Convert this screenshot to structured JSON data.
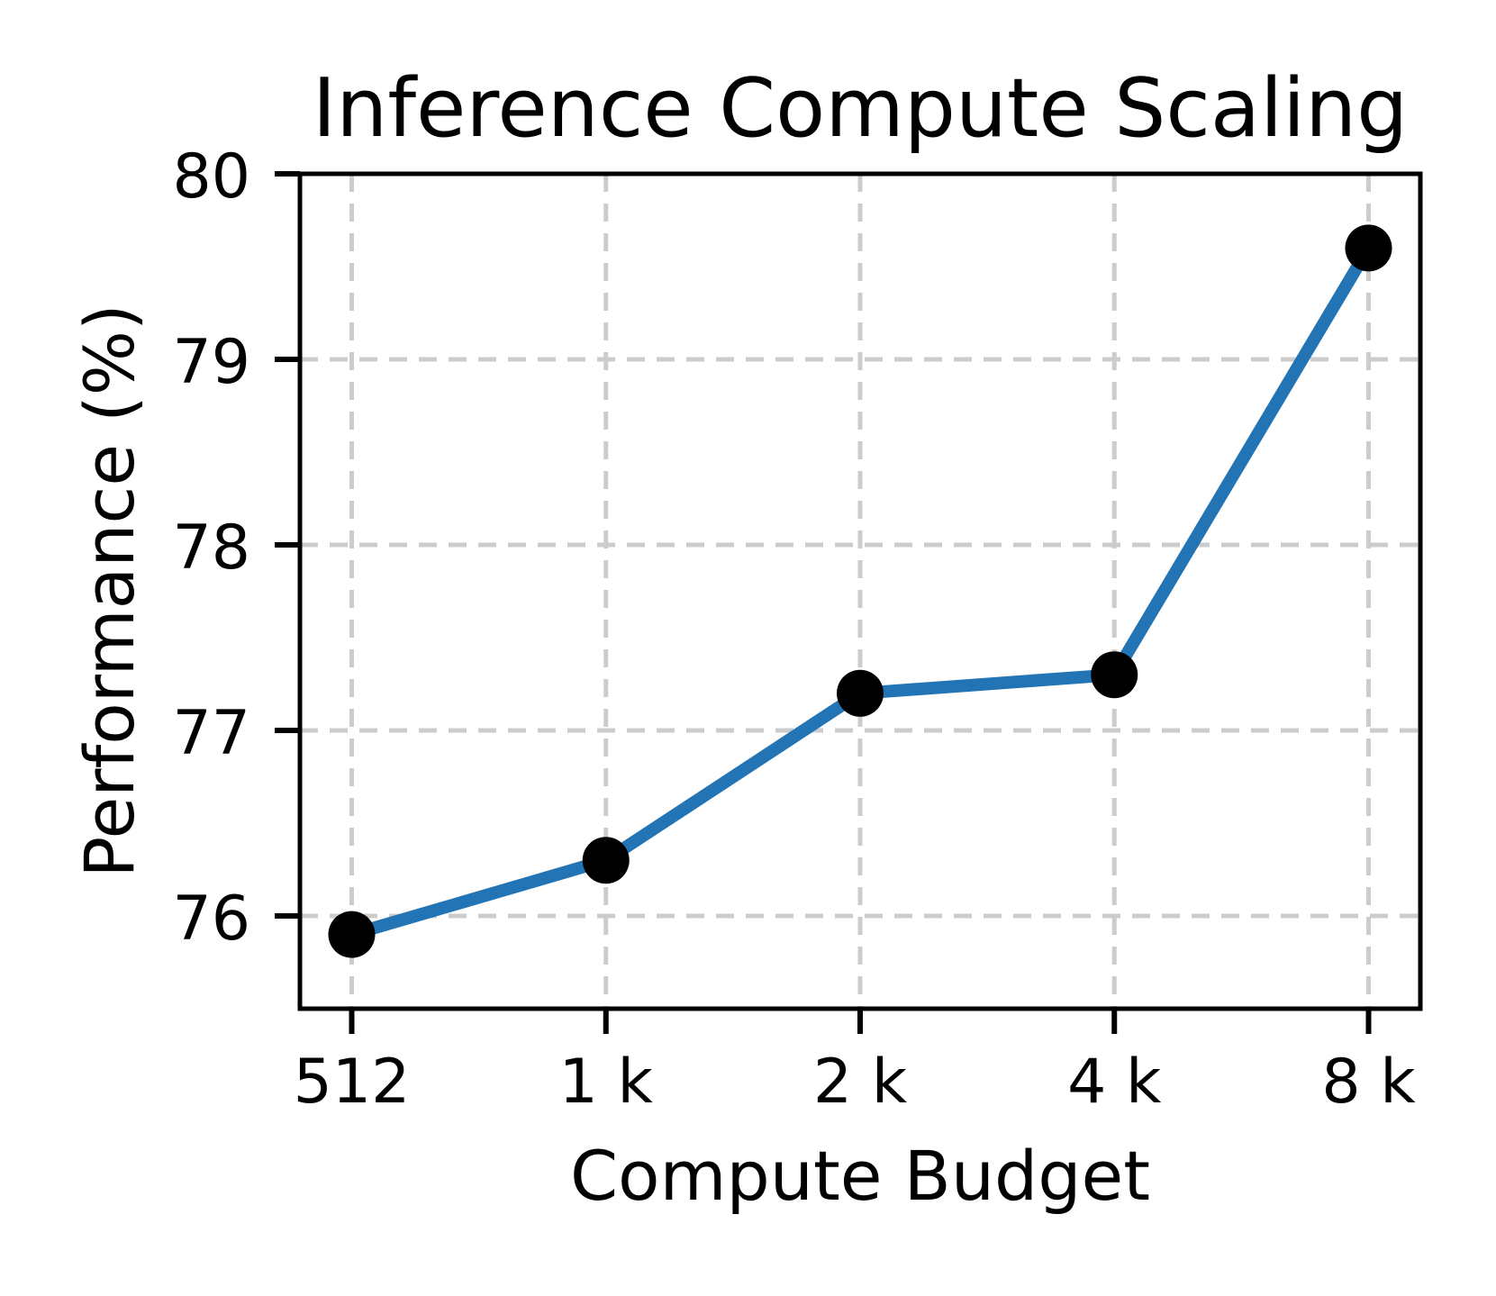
{
  "chart_data": {
    "type": "line",
    "title": "Inference Compute Scaling",
    "xlabel": "Compute Budget",
    "ylabel": "Performance (%)",
    "x": [
      512,
      1024,
      2048,
      4096,
      8192
    ],
    "x_tick_labels": [
      "512",
      "1 k",
      "2 k",
      "4 k",
      "8 k"
    ],
    "values": [
      75.9,
      76.3,
      77.2,
      77.3,
      79.6
    ],
    "series_name": "Performance",
    "x_scale": "log2",
    "xlim_log2": [
      8.8,
      13.2
    ],
    "ylim": [
      75.5,
      80
    ],
    "yticks": [
      76,
      77,
      78,
      79,
      80
    ],
    "grid": true,
    "grid_style": "dashed",
    "legend_position": "none",
    "line_color": "#2274b4",
    "marker_color": "#000000",
    "grid_color": "#cccccc",
    "axis_color": "#000000",
    "text_color": "#000000",
    "background_color": "#ffffff"
  }
}
